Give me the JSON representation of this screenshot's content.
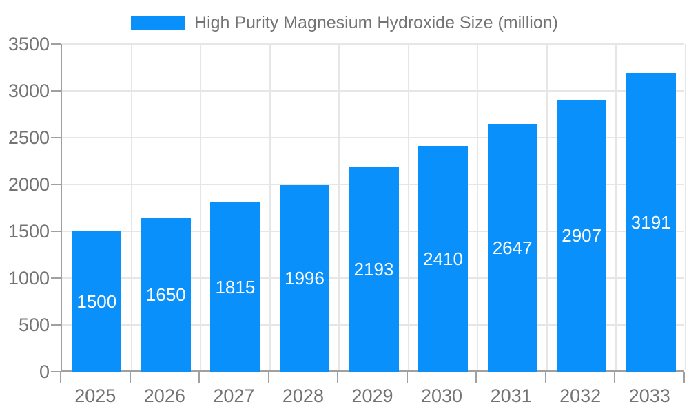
{
  "chart_data": {
    "type": "bar",
    "title": "High Purity Magnesium Hydroxide Size (million)",
    "categories": [
      "2025",
      "2026",
      "2027",
      "2028",
      "2029",
      "2030",
      "2031",
      "2032",
      "2033"
    ],
    "values": [
      1500,
      1650,
      1815,
      1996,
      2193,
      2410,
      2647,
      2907,
      3191
    ],
    "xlabel": "",
    "ylabel": "",
    "ylim": [
      0,
      3500
    ],
    "yticks": [
      0,
      500,
      1000,
      1500,
      2000,
      2500,
      3000,
      3500
    ],
    "grid": true,
    "legend_position": "top",
    "bar_labels_shown": true
  },
  "colors": {
    "bar": "#0990fa",
    "bar_value_label": "#ffffff",
    "grid": "#e6e6e6",
    "axis": "#a0a0a0",
    "text": "#737373",
    "background": "#ffffff"
  }
}
